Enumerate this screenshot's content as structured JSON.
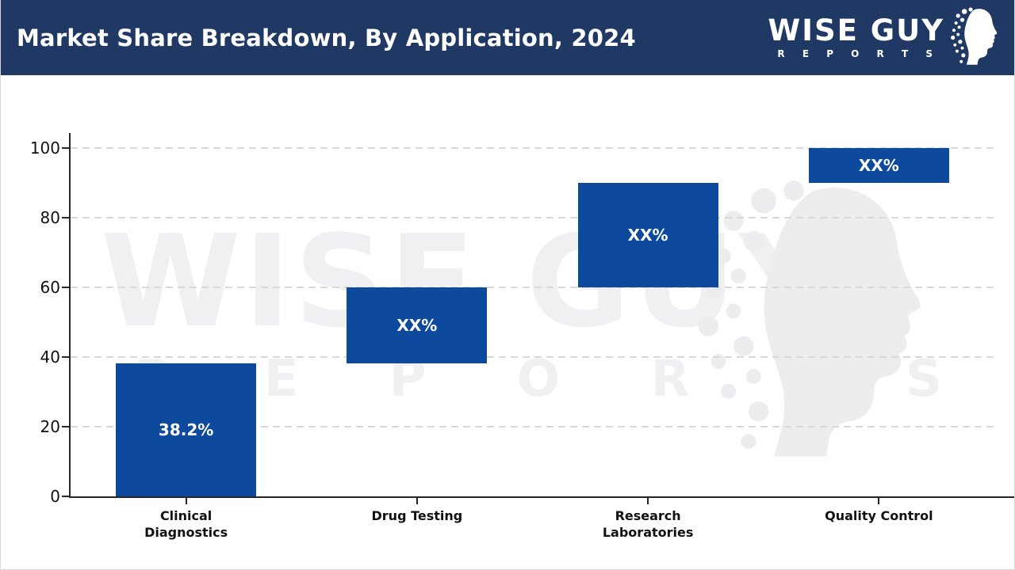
{
  "header": {
    "title": "Market Share Breakdown, By Application, 2024",
    "logo": {
      "line1": "WISE GUY",
      "line2": "R E P O R T S"
    }
  },
  "watermark": {
    "line1": "WISE GUY",
    "line2": "R E P O R T S"
  },
  "colors": {
    "header_bg": "#1f3864",
    "bar": "#0d4a9e",
    "grid": "#d9d9d9",
    "axis": "#262626",
    "bar_label": "#ffffff",
    "watermark": "#f0f0f3"
  },
  "chart_data": {
    "type": "bar",
    "subtype": "waterfall",
    "title": "Market Share Breakdown, By Application, 2024",
    "xlabel": "",
    "ylabel": "",
    "categories": [
      "Clinical\nDiagnostics",
      "Drug Testing",
      "Research\nLaboratories",
      "Quality Control"
    ],
    "segments": [
      {
        "category": "Clinical Diagnostics",
        "start": 0,
        "end": 38.2,
        "label": "38.2%"
      },
      {
        "category": "Drug Testing",
        "start": 38.2,
        "end": 60,
        "label": "XX%"
      },
      {
        "category": "Research Laboratories",
        "start": 60,
        "end": 90,
        "label": "XX%"
      },
      {
        "category": "Quality Control",
        "start": 90,
        "end": 100,
        "label": "XX%"
      }
    ],
    "yticks": [
      0,
      20,
      40,
      60,
      80,
      100
    ],
    "ylim": [
      0,
      104
    ],
    "grid": "horizontal-dashed",
    "legend": "none",
    "bar_color": "#0d4a9e"
  }
}
